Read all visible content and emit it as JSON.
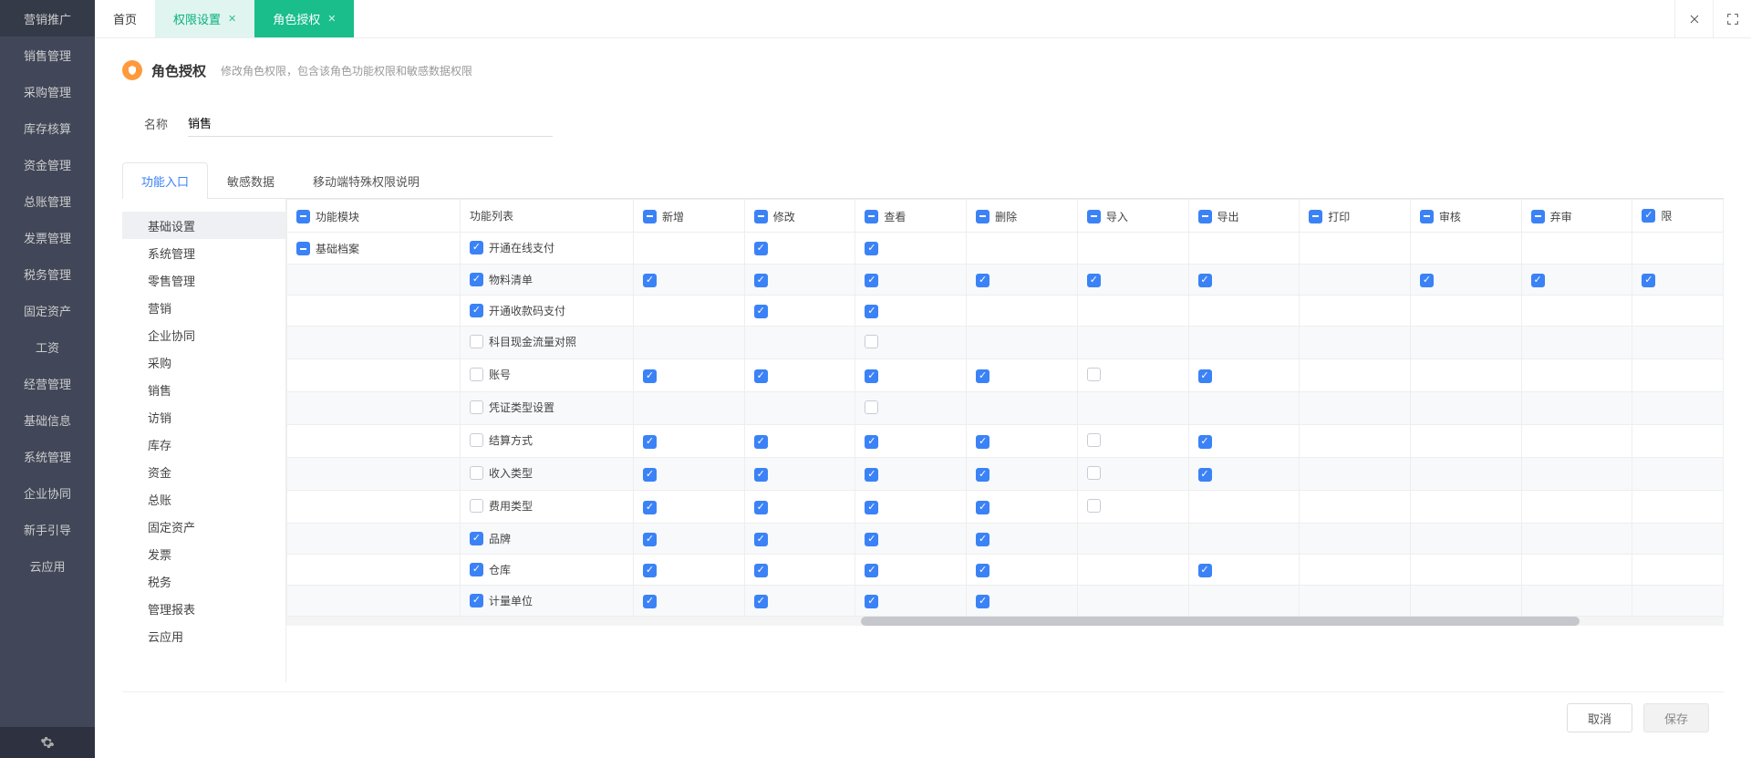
{
  "sidebar": {
    "items": [
      "营销推广",
      "销售管理",
      "采购管理",
      "库存核算",
      "资金管理",
      "总账管理",
      "发票管理",
      "税务管理",
      "固定资产",
      "工资",
      "经营管理",
      "基础信息",
      "系统管理",
      "企业协同",
      "新手引导",
      "云应用"
    ]
  },
  "tabs": {
    "home": "首页",
    "items": [
      {
        "label": "权限设置",
        "state": "light"
      },
      {
        "label": "角色授权",
        "state": "active"
      }
    ]
  },
  "page": {
    "title": "角色授权",
    "desc": "修改角色权限，包含该角色功能权限和敏感数据权限",
    "name_label": "名称",
    "name_value": "销售"
  },
  "inner_tabs": [
    "功能入口",
    "敏感数据",
    "移动端特殊权限说明"
  ],
  "modules": [
    "基础设置",
    "系统管理",
    "零售管理",
    "营销",
    "企业协同",
    "采购",
    "销售",
    "访销",
    "库存",
    "资金",
    "总账",
    "固定资产",
    "发票",
    "税务",
    "管理报表",
    "云应用"
  ],
  "columns": [
    "功能模块",
    "功能列表",
    "新增",
    "修改",
    "查看",
    "删除",
    "导入",
    "导出",
    "打印",
    "审核",
    "弃审",
    "限"
  ],
  "header_states": [
    "indet",
    "none",
    "indet",
    "indet",
    "indet",
    "indet",
    "indet",
    "indet",
    "indet",
    "indet",
    "indet",
    "checked"
  ],
  "rows": [
    {
      "module": "基础档案",
      "module_state": "indet",
      "feat": "开通在线支付",
      "feat_state": "checked",
      "cells": [
        "",
        "checked",
        "checked",
        "",
        "",
        "",
        "",
        "",
        "",
        ""
      ]
    },
    {
      "module": "",
      "module_state": "",
      "feat": "物料清单",
      "feat_state": "checked",
      "cells": [
        "checked",
        "checked",
        "checked",
        "checked",
        "checked",
        "checked",
        "",
        "checked",
        "checked",
        "checked"
      ]
    },
    {
      "module": "",
      "module_state": "",
      "feat": "开通收款码支付",
      "feat_state": "checked",
      "cells": [
        "",
        "checked",
        "checked",
        "",
        "",
        "",
        "",
        "",
        "",
        ""
      ]
    },
    {
      "module": "",
      "module_state": "",
      "feat": "科目现金流量对照",
      "feat_state": "empty",
      "cells": [
        "",
        "",
        "empty",
        "",
        "",
        "",
        "",
        "",
        "",
        ""
      ]
    },
    {
      "module": "",
      "module_state": "",
      "feat": "账号",
      "feat_state": "empty",
      "cells": [
        "checked",
        "checked",
        "checked",
        "checked",
        "empty",
        "checked",
        "",
        "",
        "",
        ""
      ]
    },
    {
      "module": "",
      "module_state": "",
      "feat": "凭证类型设置",
      "feat_state": "empty",
      "cells": [
        "",
        "",
        "empty",
        "",
        "",
        "",
        "",
        "",
        "",
        ""
      ]
    },
    {
      "module": "",
      "module_state": "",
      "feat": "结算方式",
      "feat_state": "empty",
      "cells": [
        "checked",
        "checked",
        "checked",
        "checked",
        "empty",
        "checked",
        "",
        "",
        "",
        ""
      ]
    },
    {
      "module": "",
      "module_state": "",
      "feat": "收入类型",
      "feat_state": "empty",
      "cells": [
        "checked",
        "checked",
        "checked",
        "checked",
        "empty",
        "checked",
        "",
        "",
        "",
        ""
      ]
    },
    {
      "module": "",
      "module_state": "",
      "feat": "费用类型",
      "feat_state": "empty",
      "cells": [
        "checked",
        "checked",
        "checked",
        "checked",
        "empty",
        "",
        "",
        "",
        "",
        ""
      ]
    },
    {
      "module": "",
      "module_state": "",
      "feat": "品牌",
      "feat_state": "checked",
      "cells": [
        "checked",
        "checked",
        "checked",
        "checked",
        "",
        "",
        "",
        "",
        "",
        ""
      ]
    },
    {
      "module": "",
      "module_state": "",
      "feat": "仓库",
      "feat_state": "checked",
      "cells": [
        "checked",
        "checked",
        "checked",
        "checked",
        "",
        "checked",
        "",
        "",
        "",
        ""
      ]
    },
    {
      "module": "",
      "module_state": "",
      "feat": "计量单位",
      "feat_state": "checked",
      "cells": [
        "checked",
        "checked",
        "checked",
        "checked",
        "",
        "",
        "",
        "",
        "",
        ""
      ]
    }
  ],
  "buttons": {
    "cancel": "取消",
    "save": "保存"
  }
}
